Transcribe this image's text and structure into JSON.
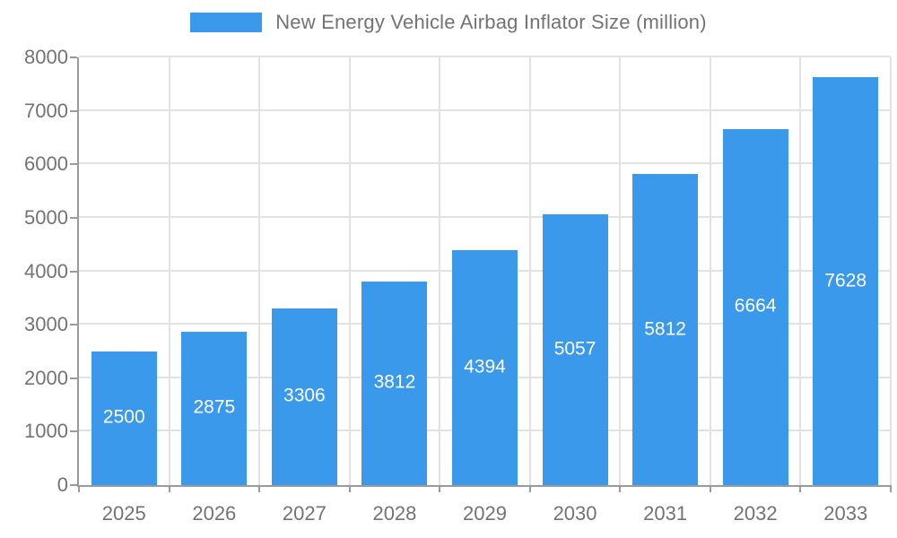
{
  "chart_data": {
    "type": "bar",
    "title": "",
    "legend": "New Energy Vehicle Airbag Inflator Size (million)",
    "legend_position": "top",
    "categories": [
      "2025",
      "2026",
      "2027",
      "2028",
      "2029",
      "2030",
      "2031",
      "2032",
      "2033"
    ],
    "values": [
      2500,
      2875,
      3306,
      3812,
      4394,
      5057,
      5812,
      6664,
      7628
    ],
    "xlabel": "",
    "ylabel": "",
    "ylim": [
      0,
      8000
    ],
    "y_ticks": [
      0,
      1000,
      2000,
      3000,
      4000,
      5000,
      6000,
      7000,
      8000
    ],
    "grid": true,
    "bar_label_position": "inside-center",
    "colors": {
      "bar": "#3b99ec",
      "bar_label": "#ffffff",
      "axis_text": "#737373",
      "axis_line": "#9a9a9a",
      "gridline": "#e2e2e2",
      "background": "#ffffff"
    }
  }
}
